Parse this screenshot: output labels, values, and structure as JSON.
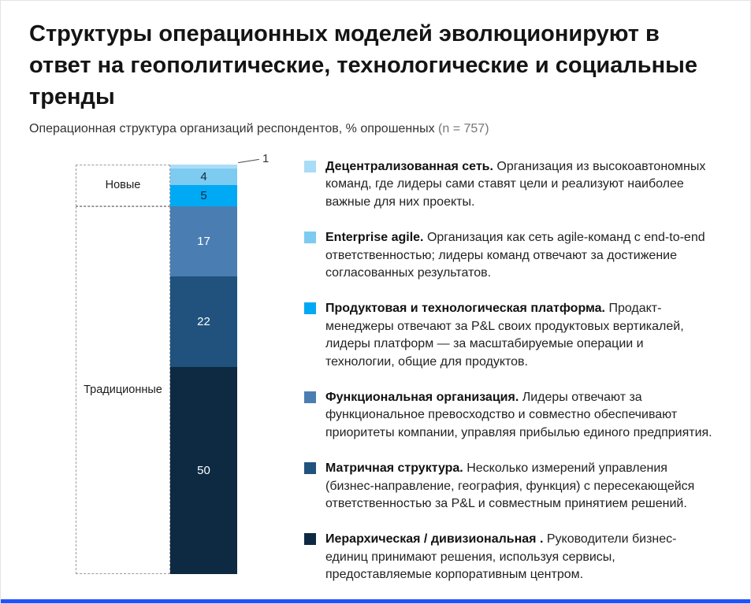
{
  "page": {
    "title": "Структуры операционных моделей эволюционируют в ответ на геополитические, технологические и социальные тренды",
    "subtitle": "Операционная структура организаций респондентов, % опрошенных",
    "sample_note": "(n = 757)",
    "accent_bar_color": "#2251FF"
  },
  "chart_data": {
    "type": "bar",
    "variant": "stacked-vertical-single-bar",
    "title": "Операционная структура организаций респондентов, % опрошенных (n = 757)",
    "unit": "% опрошенных",
    "sample_size": 757,
    "groups": [
      {
        "label": "Новые",
        "segment_indexes": [
          0,
          1,
          2
        ]
      },
      {
        "label": "Традиционные",
        "segment_indexes": [
          3,
          4,
          5
        ]
      }
    ],
    "segments": [
      {
        "name": "Децентрализованная сеть",
        "value": 1,
        "color": "#A9DCF7",
        "label_color": "#333333",
        "label_outside": true
      },
      {
        "name": "Enterprise agile",
        "value": 4,
        "color": "#7DCBF0",
        "label_color": "#12283d",
        "label_outside": false
      },
      {
        "name": "Продуктовая и технологическая платформа",
        "value": 5,
        "color": "#00A9F4",
        "label_color": "#12283d",
        "label_outside": false
      },
      {
        "name": "Функциональная организация",
        "value": 17,
        "color": "#4A7EB2",
        "label_color": "#ffffff",
        "label_outside": false
      },
      {
        "name": "Матричная структура",
        "value": 22,
        "color": "#20527D",
        "label_color": "#ffffff",
        "label_outside": false
      },
      {
        "name": "Иерархическая / дивизиональная",
        "value": 50,
        "color": "#0E2A43",
        "label_color": "#ffffff",
        "label_outside": false
      }
    ]
  },
  "legend": [
    {
      "term": "Децентрализованная сеть.",
      "description": "Организация из высокоавтономных команд, где лидеры сами ставят цели и реализуют наиболее важные для них проекты.",
      "color": "#A9DCF7"
    },
    {
      "term": "Enterprise agile.",
      "description": "Организация как сеть agile-команд с end-to-end ответственностью; лидеры команд отвечают за достижение согласованных результатов.",
      "color": "#7DCBF0"
    },
    {
      "term": "Продуктовая и технологическая платформа.",
      "description": "Продакт-менеджеры отвечают за P&L своих продуктовых вертикалей, лидеры платформ — за масштабируемые операции и технологии, общие для продуктов.",
      "color": "#00A9F4"
    },
    {
      "term": "Функциональная организация.",
      "description": "Лидеры отвечают за функциональное превосходство и совместно обеспечивают приоритеты компании, управляя прибылью единого предприятия.",
      "color": "#4A7EB2"
    },
    {
      "term": "Матричная структура.",
      "description": "Несколько измерений управления (бизнес-направление, география, функция) с пересекающейся ответственностью за P&L и совместным принятием решений.",
      "color": "#20527D"
    },
    {
      "term": "Иерархическая / дивизиональная .",
      "description": "Руководители бизнес-единиц принимают решения, используя сервисы, предоставляемые корпоративным центром.",
      "color": "#0E2A43"
    }
  ]
}
